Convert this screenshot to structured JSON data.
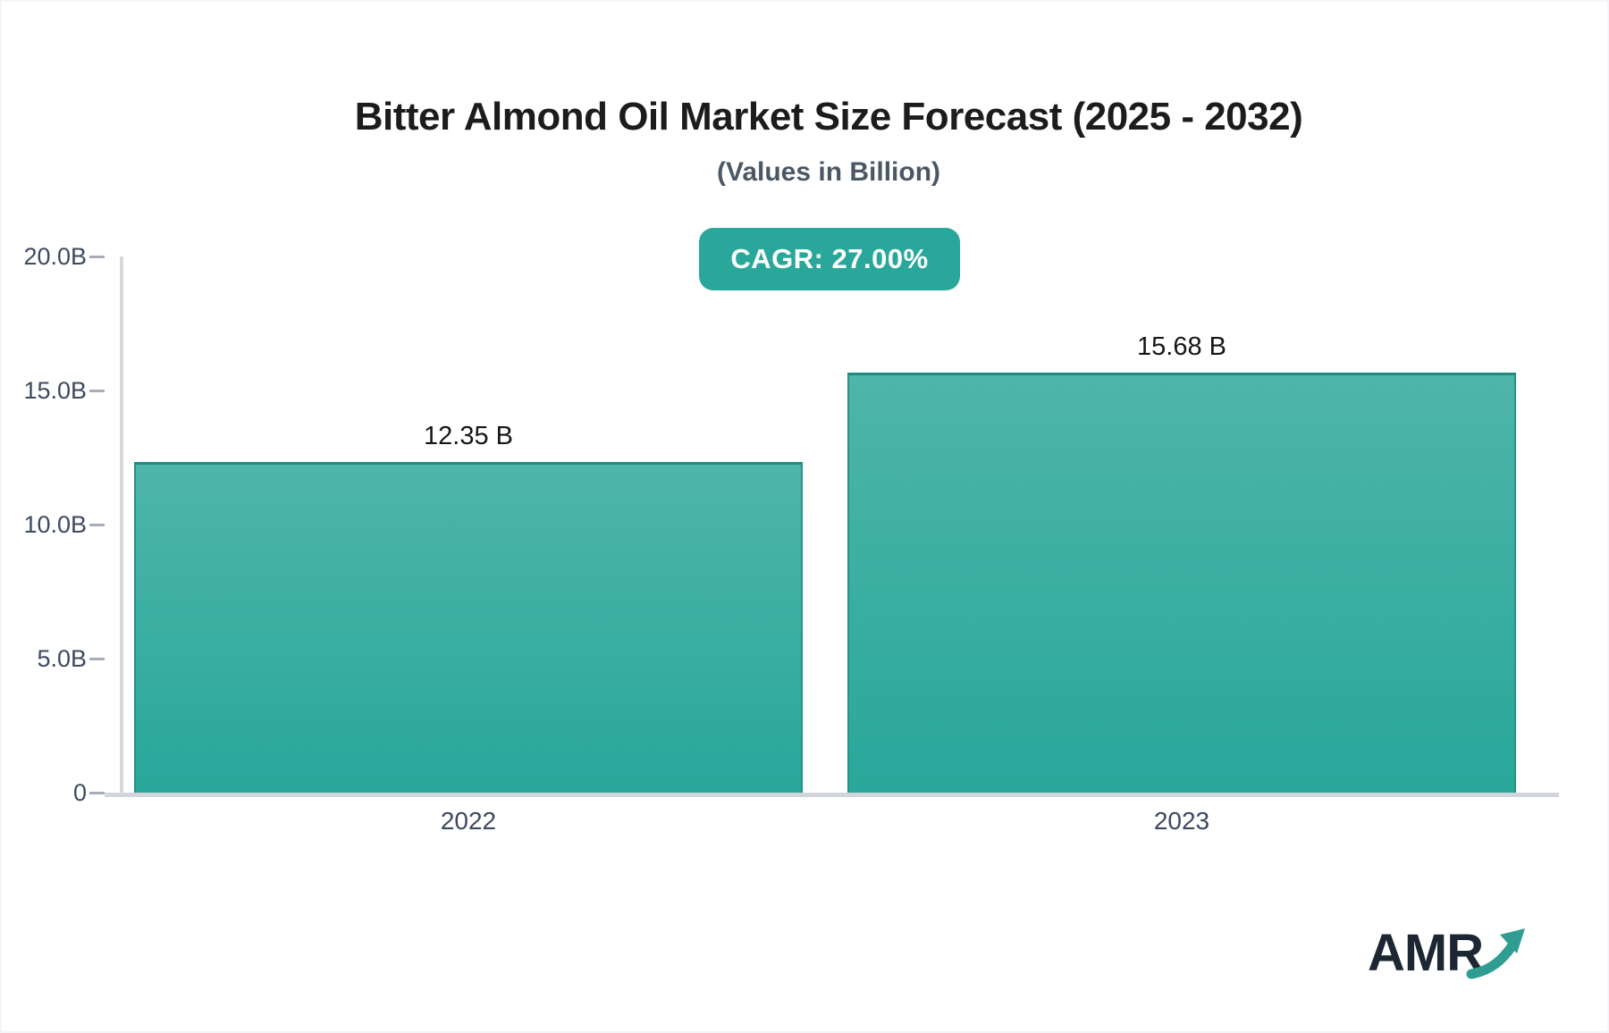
{
  "header": {
    "title": "Bitter Almond Oil Market Size Forecast (2025 - 2032)",
    "subtitle": "(Values in Billion)",
    "cagr_badge": "CAGR: 27.00%",
    "badge_color": "#2aa79b"
  },
  "chart_data": {
    "type": "bar",
    "title": "Bitter Almond Oil Market Size Forecast (2025 - 2032)",
    "subtitle": "(Values in Billion)",
    "cagr": "27.00%",
    "categories": [
      "2022",
      "2023"
    ],
    "values": [
      12.35,
      15.68
    ],
    "value_labels": [
      "12.35 B",
      "15.68 B"
    ],
    "unit": "Billion",
    "xlabel": "",
    "ylabel": "",
    "ylim": [
      0,
      20
    ],
    "yticks": [
      0,
      5,
      10,
      15,
      20
    ],
    "ytick_labels": [
      "0",
      "5.0B",
      "10.0B",
      "15.0B",
      "20.0B"
    ],
    "grid": false,
    "legend": "none",
    "bar_color_top": "#4fb5aa",
    "bar_color_bottom": "#28a79a",
    "bar_border_color": "#23948a",
    "bar_top_border_color": "#1d8c80",
    "axis_color": "#d7d9de",
    "tick_color": "#a7adb8"
  },
  "logo": {
    "text": "AMR",
    "text_color": "#1c2733",
    "arrow_color": "#2f9d91"
  }
}
